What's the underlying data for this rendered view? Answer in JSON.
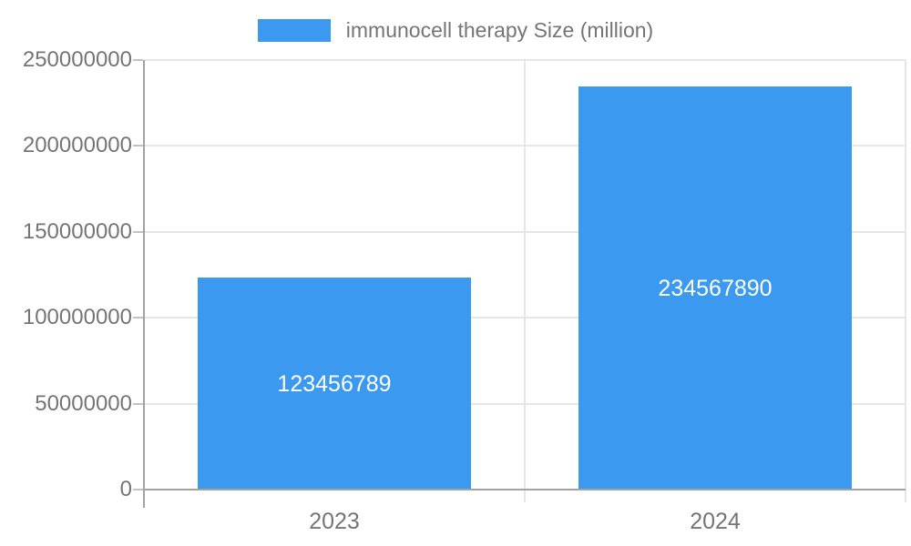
{
  "page": {
    "background": "#ffffff"
  },
  "legend": {
    "label": "immunocell therapy Size (million)",
    "swatch_color": "#3b9af0"
  },
  "chart_data": {
    "type": "bar",
    "title": "immunocell therapy Size (million)",
    "categories": [
      "2023",
      "2024"
    ],
    "series": [
      {
        "name": "immunocell therapy Size (million)",
        "values": [
          123456789,
          234567890
        ]
      }
    ],
    "bar_labels": [
      "123456789",
      "234567890"
    ],
    "xlabel": "",
    "ylabel": "",
    "ylim": [
      0,
      250000000
    ],
    "yticks": [
      0,
      50000000,
      100000000,
      150000000,
      200000000,
      250000000
    ],
    "ytick_labels": [
      "0",
      "50000000",
      "100000000",
      "150000000",
      "200000000",
      "250000000"
    ],
    "grid": true,
    "legend_position": "top",
    "colors": {
      "bar": "#3b9af0",
      "gridline": "#e6e6e6",
      "axis_line": "#a3a3a3",
      "tick": "#c2c2c2",
      "axis_text": "#757575",
      "bar_label_text": "#ffffff",
      "background": "#ffffff"
    }
  }
}
